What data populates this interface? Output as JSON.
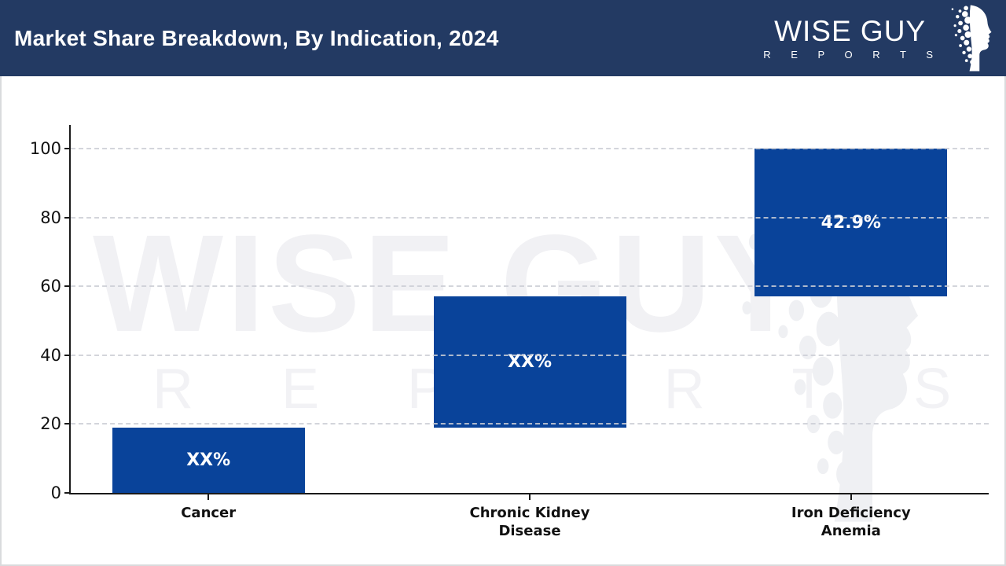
{
  "header": {
    "title": "Market Share Breakdown, By Indication, 2024",
    "logo": {
      "name": "WISE GUY",
      "tagline": "R E P O R T S",
      "icon": "dotted-face-profile-icon"
    }
  },
  "watermark": {
    "name": "WISE GUY",
    "tagline": "R E P O R T S",
    "icon": "dotted-face-profile-icon"
  },
  "colors": {
    "header_bg": "#233a63",
    "header_text": "#ffffff",
    "bar": "#09439a",
    "bar_label": "#ffffff",
    "axis": "#1a1a1a",
    "tick_label": "#111111",
    "grid": "#cbced5",
    "watermark": "#f1f1f4",
    "frame_border": "#d9dbdd",
    "background": "#ffffff"
  },
  "chart_data": {
    "type": "bar",
    "subtype": "waterfall-floating-bars",
    "title": "Market Share Breakdown, By Indication, 2024",
    "xlabel": "",
    "ylabel": "",
    "categories": [
      "Cancer",
      "Chronic Kidney\nDisease",
      "Iron Deficiency\nAnemia"
    ],
    "series": [
      {
        "name": "Market share (%)",
        "segments": [
          {
            "category": "Cancer",
            "start": 0,
            "end": 19.0,
            "value_label": "XX%"
          },
          {
            "category": "Chronic Kidney Disease",
            "start": 19.0,
            "end": 57.1,
            "value_label": "XX%"
          },
          {
            "category": "Iron Deficiency Anemia",
            "start": 57.1,
            "end": 100.0,
            "value_label": "42.9%"
          }
        ]
      }
    ],
    "yticks": [
      0,
      20,
      40,
      60,
      80,
      100
    ],
    "ylim": [
      0,
      106
    ],
    "grid": "horizontal-dashed",
    "grid_above_bars": true,
    "legend": "none",
    "bar_color": "#09439a"
  }
}
